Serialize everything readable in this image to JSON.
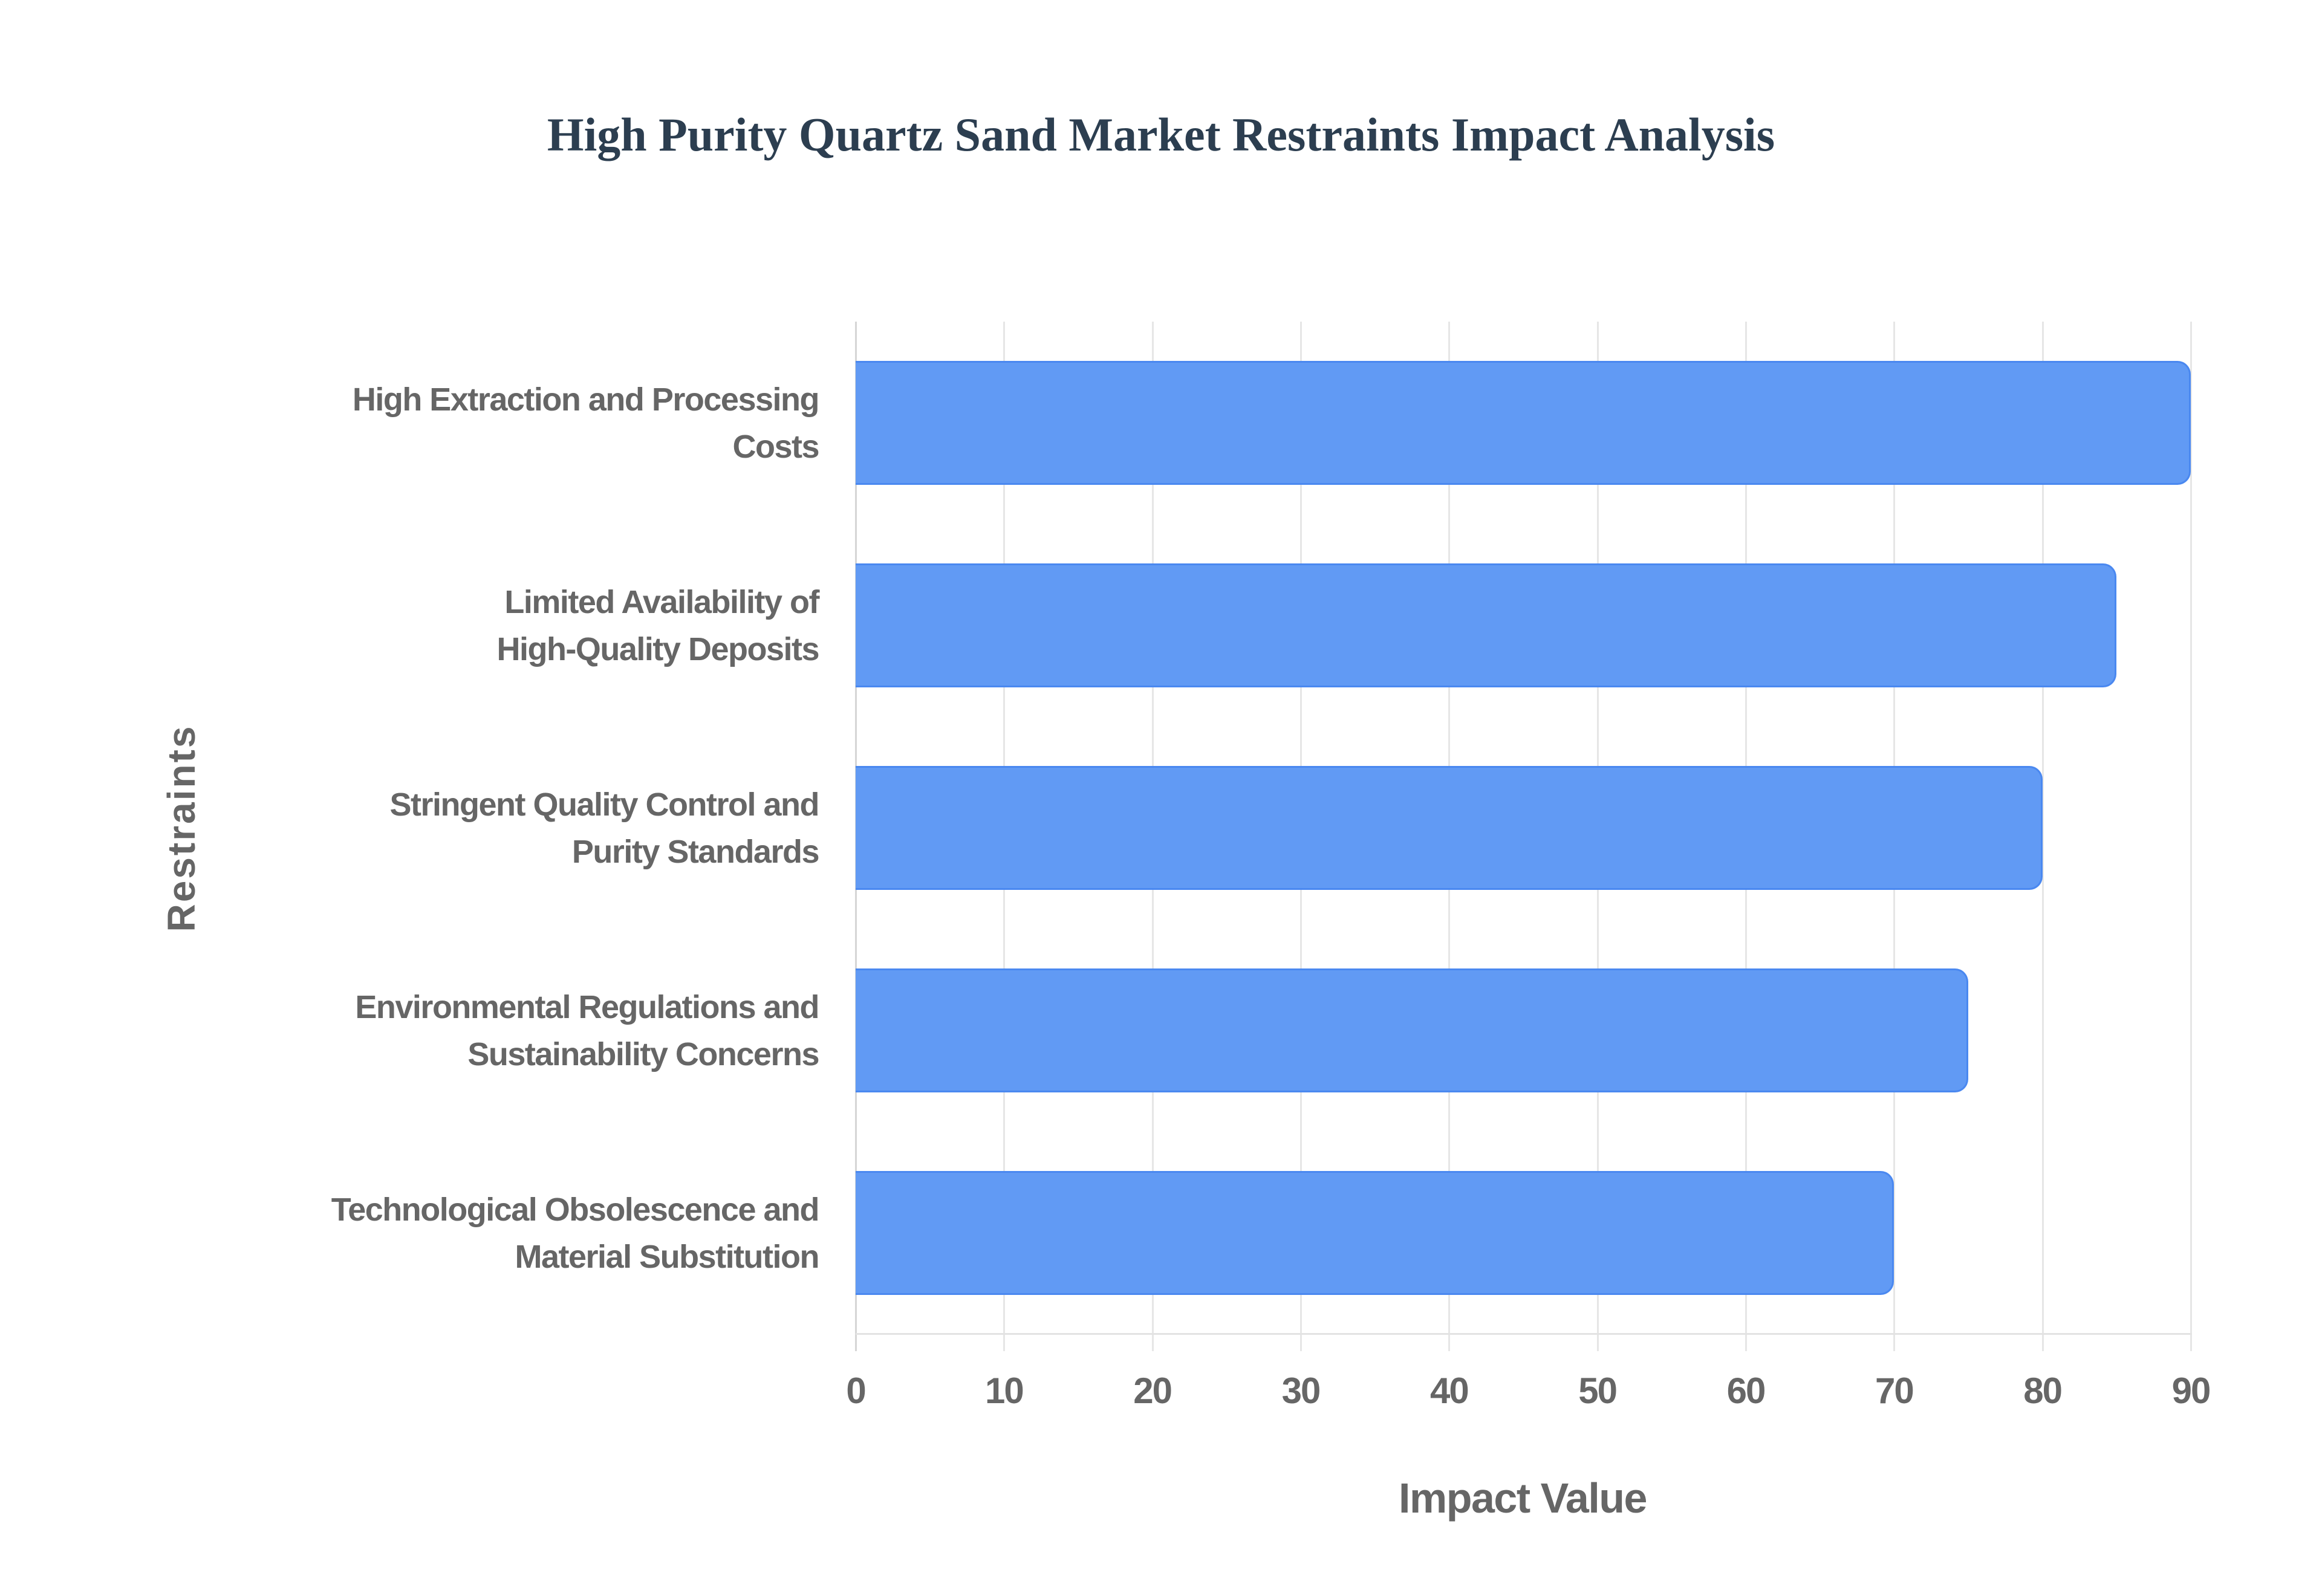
{
  "chart_data": {
    "type": "bar",
    "orientation": "horizontal",
    "title": "High Purity Quartz Sand Market Restraints Impact Analysis",
    "xlabel": "Impact Value",
    "ylabel": "Restraints",
    "categories": [
      "High Extraction and Processing Costs",
      "Limited Availability of High-Quality Deposits",
      "Stringent Quality Control and Purity Standards",
      "Environmental Regulations and Sustainability Concerns",
      "Technological Obsolescence and Material Substitution"
    ],
    "values": [
      90,
      85,
      80,
      75,
      70
    ],
    "xlim": [
      0,
      90
    ],
    "xticks": [
      0,
      10,
      20,
      30,
      40,
      50,
      60,
      70,
      80,
      90
    ],
    "grid": true,
    "legend": null,
    "bar_color": "#619af4",
    "bar_border_color": "#4a88f0"
  },
  "title": "High Purity Quartz Sand Market Restraints Impact Analysis",
  "axes": {
    "x_title": "Impact Value",
    "y_title": "Restraints",
    "x_ticks": [
      "0",
      "10",
      "20",
      "30",
      "40",
      "50",
      "60",
      "70",
      "80",
      "90"
    ]
  },
  "bars": [
    {
      "label_lines": [
        "High Extraction and Processing",
        "Costs"
      ],
      "value": 90
    },
    {
      "label_lines": [
        "Limited Availability of",
        "High-Quality Deposits"
      ],
      "value": 85
    },
    {
      "label_lines": [
        "Stringent Quality Control and",
        "Purity Standards"
      ],
      "value": 80
    },
    {
      "label_lines": [
        "Environmental Regulations and",
        "Sustainability Concerns"
      ],
      "value": 75
    },
    {
      "label_lines": [
        "Technological Obsolescence and",
        "Material Substitution"
      ],
      "value": 70
    }
  ]
}
